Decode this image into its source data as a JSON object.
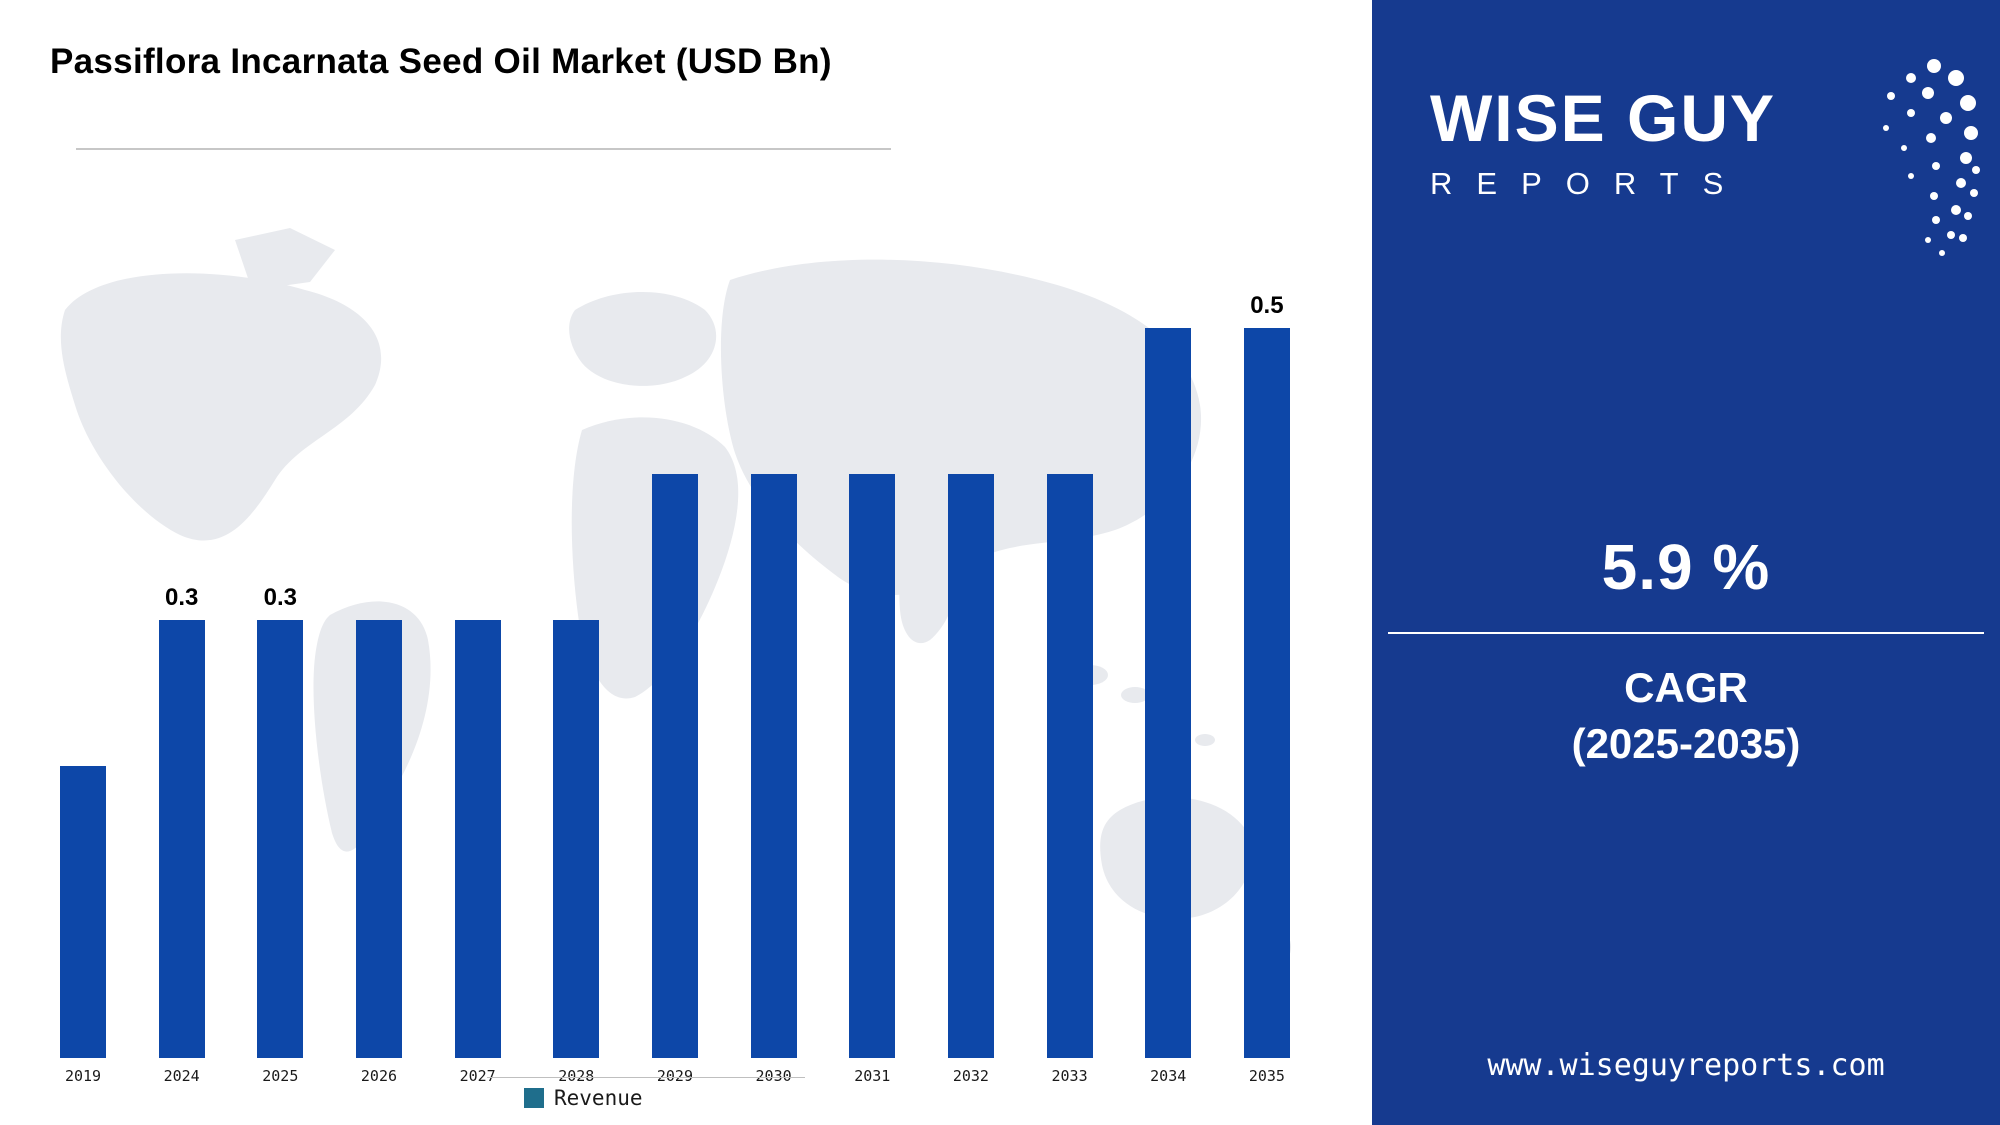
{
  "title": "Passiflora Incarnata Seed Oil Market (USD Bn)",
  "legend": {
    "label": "Revenue",
    "swatch_color": "#1f6e8c"
  },
  "panel": {
    "background_color": "#163a8f",
    "logo_line1": "WISE GUY",
    "logo_line2": "REPORTS",
    "logo_icon": "dotted-head-profile-icon",
    "cagr_value": "5.9 %",
    "cagr_label": "CAGR",
    "cagr_range": "(2025-2035)",
    "website": "www.wiseguyreports.com"
  },
  "chart_data": {
    "type": "bar",
    "title": "Passiflora Incarnata Seed Oil Market (USD Bn)",
    "categories": [
      "2019",
      "2024",
      "2025",
      "2026",
      "2027",
      "2028",
      "2029",
      "2030",
      "2031",
      "2032",
      "2033",
      "2034",
      "2035"
    ],
    "values": [
      0.2,
      0.3,
      0.3,
      0.3,
      0.3,
      0.3,
      0.4,
      0.4,
      0.4,
      0.4,
      0.4,
      0.5,
      0.5
    ],
    "value_labels": [
      "",
      "0.3",
      "0.3",
      "",
      "",
      "",
      "",
      "",
      "",
      "",
      "",
      "",
      "0.5"
    ],
    "series_name": "Revenue",
    "xlabel": "",
    "ylabel": "",
    "ylim": [
      0,
      0.55
    ],
    "grid": false,
    "legend_position": "bottom",
    "bar_color": "#0d47a8",
    "map_background_color": "#e8eaee"
  }
}
